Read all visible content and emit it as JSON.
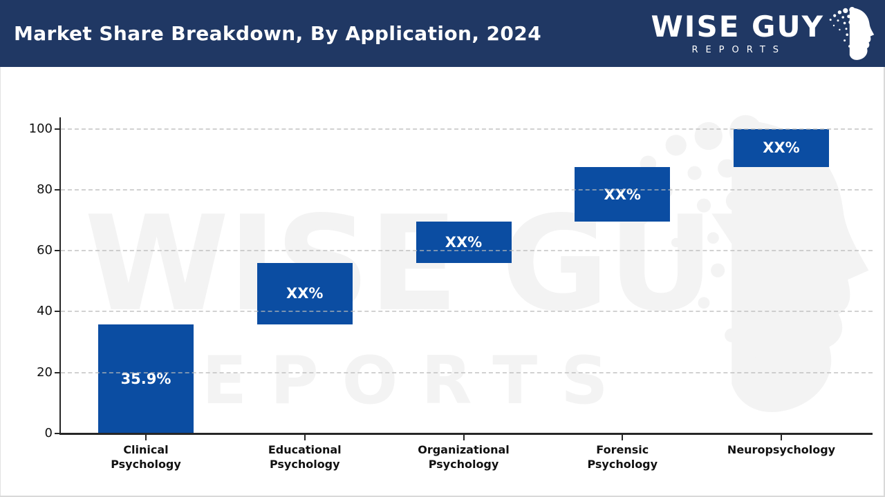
{
  "header": {
    "title": "Market Share Breakdown, By Application, 2024",
    "bg_color": "#203864",
    "logo": {
      "title": "WISE GUY",
      "subtitle": "REPORTS"
    }
  },
  "watermark": {
    "title": "WISE GUY",
    "subtitle": "REPORTS"
  },
  "chart_data": {
    "type": "bar",
    "subtype": "floating-waterfall",
    "title": "Market Share Breakdown, By Application, 2024",
    "categories": [
      "Clinical Psychology",
      "Educational Psychology",
      "Organizational Psychology",
      "Forensic Psychology",
      "Neuropsychology"
    ],
    "category_lines": [
      [
        "Clinical",
        "Psychology"
      ],
      [
        "Educational",
        "Psychology"
      ],
      [
        "Organizational",
        "Psychology"
      ],
      [
        "Forensic",
        "Psychology"
      ],
      [
        "Neuropsychology"
      ]
    ],
    "segments": [
      {
        "category": "Clinical Psychology",
        "start": 0,
        "end": 35.9,
        "label": "35.9%"
      },
      {
        "category": "Educational Psychology",
        "start": 35.9,
        "end": 56,
        "label": "XX%"
      },
      {
        "category": "Organizational Psychology",
        "start": 56,
        "end": 69.5,
        "label": "XX%"
      },
      {
        "category": "Forensic Psychology",
        "start": 69.5,
        "end": 87.5,
        "label": "XX%"
      },
      {
        "category": "Neuropsychology",
        "start": 87.5,
        "end": 100,
        "label": "XX%"
      }
    ],
    "ylim": [
      0,
      100
    ],
    "yticks": [
      0,
      20,
      40,
      60,
      80,
      100
    ],
    "xlabel": "",
    "ylabel": "",
    "grid": "horizontal-dashed",
    "legend_position": "none",
    "bar_color": "#0b4da2",
    "bar_label_color": "#ffffff"
  }
}
